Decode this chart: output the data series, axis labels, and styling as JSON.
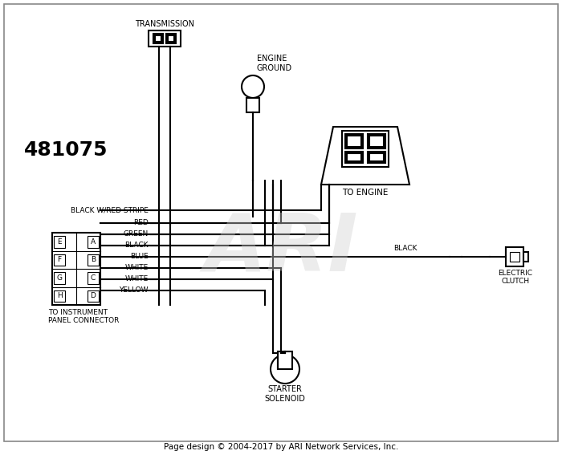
{
  "title": "481075",
  "footer": "Page design © 2004-2017 by ARI Network Services, Inc.",
  "bg_color": "#ffffff",
  "line_color": "#000000",
  "watermark_color": "#d0d0d0",
  "labels": {
    "transmission": "TRANSMISSION",
    "engine_ground": "ENGINE\nGROUND",
    "to_engine": "TO ENGINE",
    "black_red": "BLACK W/RED STRIPE",
    "red": "RED",
    "green": "GREEN",
    "black": "BLACK",
    "blue": "BLUE",
    "white1": "WHITE",
    "white2": "WHITE",
    "yellow": "YELLOW",
    "black_wire": "BLACK",
    "electric_clutch": "ELECTRIC\nCLUTCH",
    "starter_solenoid": "STARTER\nSOLENOID",
    "instrument": "TO INSTRUMENT\nPANEL CONNECTOR",
    "connector_labels_left": [
      "E",
      "F",
      "G",
      "H"
    ],
    "connector_labels_right": [
      "A",
      "B",
      "C",
      "D"
    ]
  }
}
